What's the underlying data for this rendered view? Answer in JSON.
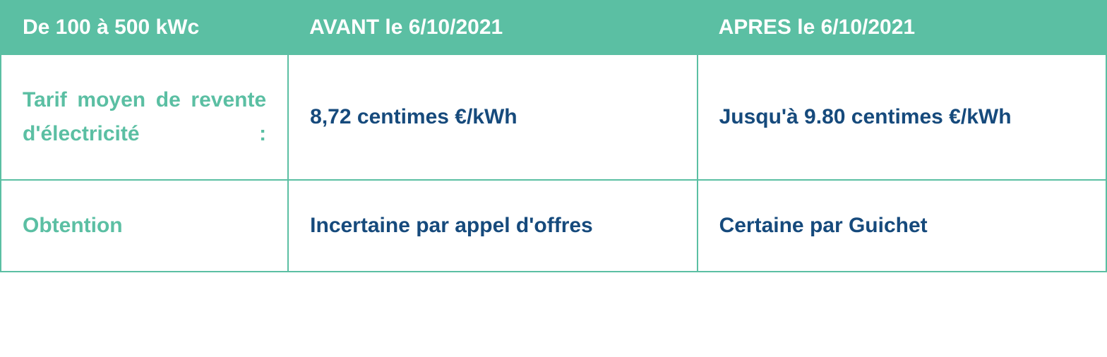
{
  "table": {
    "header_bg_color": "#5bbfa3",
    "header_text_color": "#ffffff",
    "border_color": "#5bbfa3",
    "label_color": "#5bbfa3",
    "data_color": "#164a7c",
    "font_size": 30,
    "columns": [
      "De 100 à 500 kWc",
      "AVANT le 6/10/2021",
      "APRES le 6/10/2021"
    ],
    "rows": [
      {
        "label": "Tarif moyen de revente d'électricité :",
        "before": "8,72 centimes €/kWh",
        "after": "Jusqu'à 9.80 centimes €/kWh"
      },
      {
        "label": "Obtention",
        "before": "Incertaine par appel d'offres",
        "after": "Certaine par Guichet"
      }
    ]
  }
}
